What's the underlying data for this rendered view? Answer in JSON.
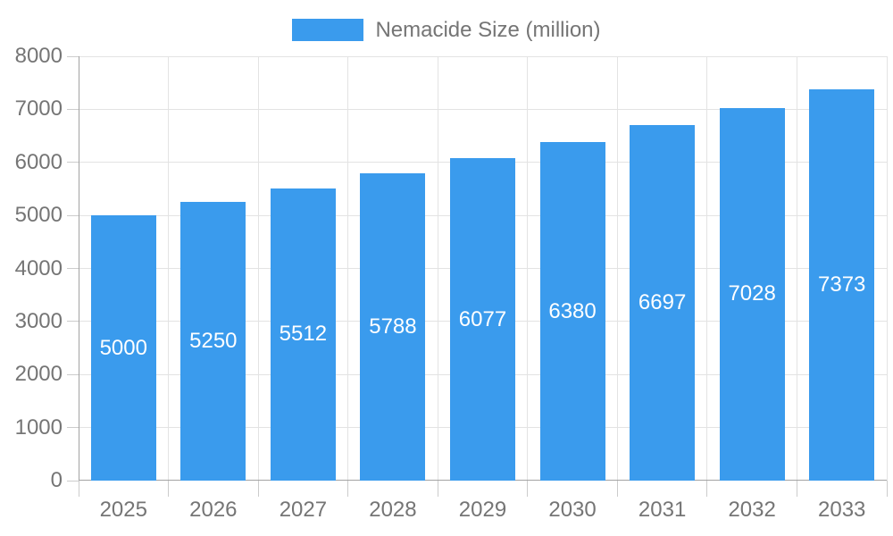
{
  "legend": {
    "label": "Nemacide Size (million)"
  },
  "chart_data": {
    "type": "bar",
    "title": "",
    "xlabel": "",
    "ylabel": "",
    "categories": [
      "2025",
      "2026",
      "2027",
      "2028",
      "2029",
      "2030",
      "2031",
      "2032",
      "2033"
    ],
    "series": [
      {
        "name": "Nemacide Size (million)",
        "values": [
          5000,
          5250,
          5512,
          5788,
          6077,
          6380,
          6697,
          7028,
          7373
        ]
      }
    ],
    "ylim": [
      0,
      8000
    ],
    "yticks": [
      0,
      1000,
      2000,
      3000,
      4000,
      5000,
      6000,
      7000,
      8000
    ],
    "grid": true,
    "legend_position": "top",
    "bar_value_label_position": "inside-center",
    "colors": {
      "bar": "#3A9BED",
      "bar_value_label": "#ffffff",
      "gridline": "#e3e3e3",
      "axis_line": "#a3a3a3",
      "tick_line": "#cccccc",
      "axis_label_text": "#757575",
      "legend_text": "#757575",
      "background": "#ffffff"
    }
  }
}
